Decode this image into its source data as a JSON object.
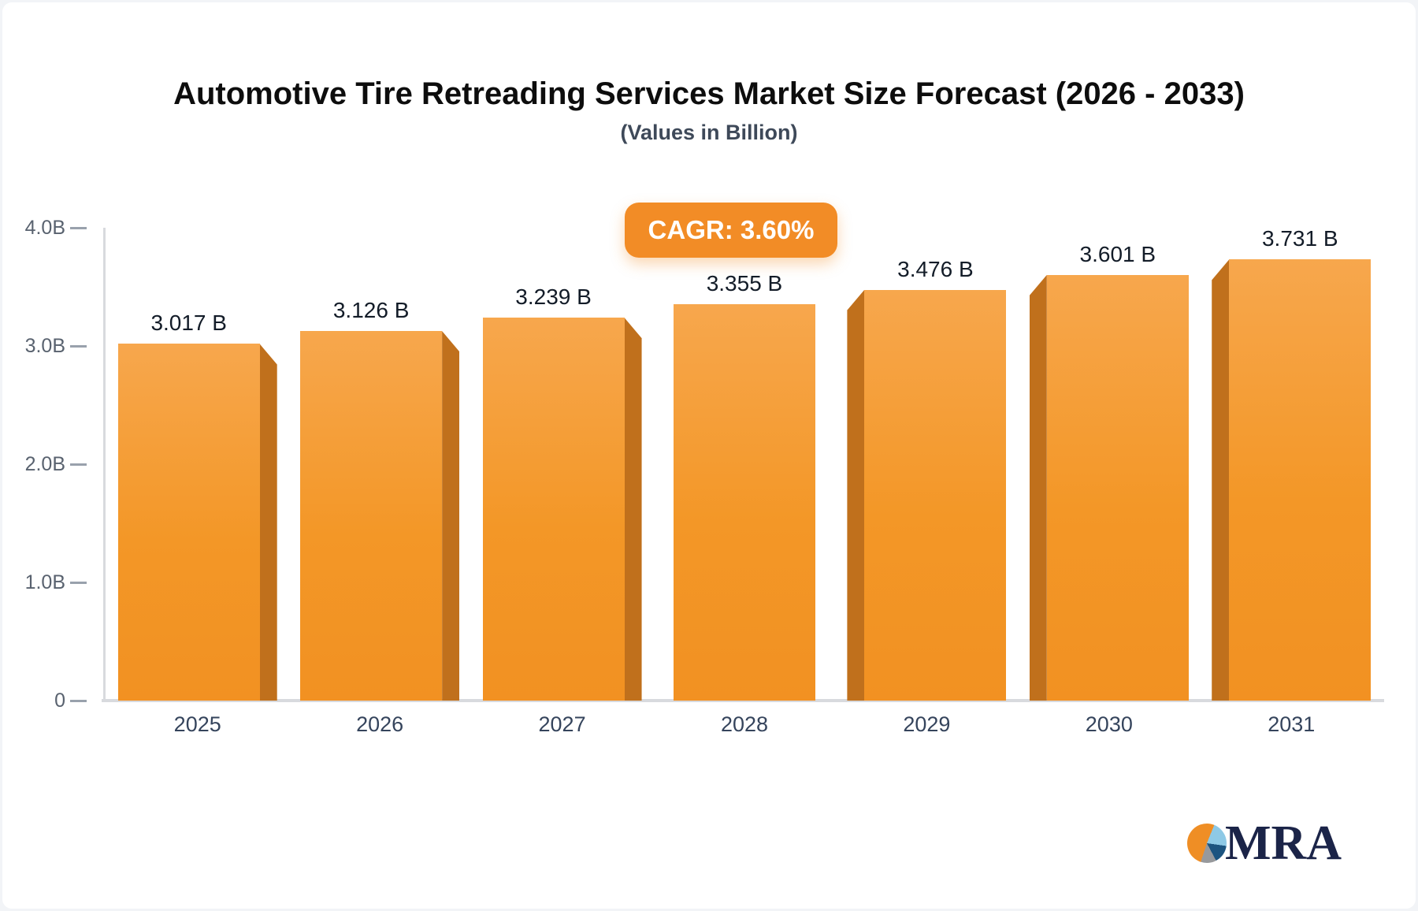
{
  "header": {
    "title": "Automotive Tire Retreading Services Market Size Forecast (2026 - 2033)",
    "subtitle": "(Values in Billion)"
  },
  "badge": {
    "label": "CAGR: 3.60%"
  },
  "logo": {
    "text": "MRA",
    "icon": "pie-chart-icon"
  },
  "colors": {
    "accent_orange": "#f28c26",
    "bar_gradient_top": "#f7a74d",
    "bar_gradient_bottom": "#f29122",
    "bar_side_face": "#c0701c",
    "axis_line": "#d8dade",
    "tick_label": "#59626f",
    "category_label": "#35445c",
    "value_label": "#131c28",
    "logo_navy": "#1b2448",
    "pie_lightblue": "#8ec9e6",
    "pie_navy": "#1c5480",
    "pie_gray": "#97999c"
  },
  "chart_data": {
    "type": "bar",
    "title": "Automotive Tire Retreading Services Market Size Forecast (2026 - 2033)",
    "subtitle": "(Values in Billion)",
    "cagr_annotation": "CAGR: 3.60%",
    "categories": [
      "2025",
      "2026",
      "2027",
      "2028",
      "2029",
      "2030",
      "2031"
    ],
    "values": [
      3.017,
      3.126,
      3.239,
      3.355,
      3.476,
      3.601,
      3.731
    ],
    "value_labels": [
      "3.017 B",
      "3.126 B",
      "3.239 B",
      "3.355 B",
      "3.476 B",
      "3.601 B",
      "3.731 B"
    ],
    "ytick_labels": [
      "0",
      "1.0B",
      "2.0B",
      "3.0B",
      "4.0B"
    ],
    "ytick_values": [
      0,
      1.0,
      2.0,
      3.0,
      4.0
    ],
    "ylim": [
      0,
      4.0
    ],
    "grid": false,
    "legend": false,
    "bar_style": "3d-perspective-toward-center"
  }
}
